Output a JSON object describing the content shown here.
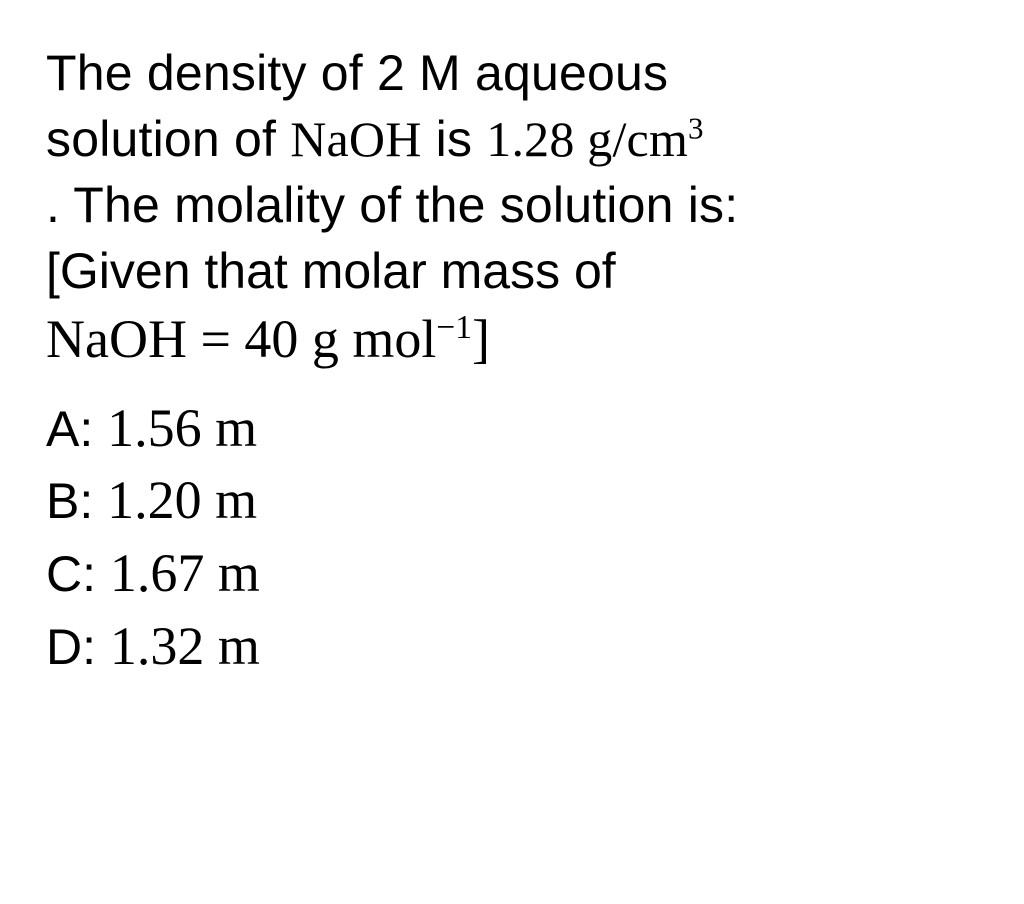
{
  "background_color": "#ffffff",
  "text_color": "#000000",
  "fonts": {
    "sans": "Arial, Helvetica, sans-serif",
    "serif": "\"Times New Roman\", Times, serif"
  },
  "question": {
    "line1_a": "The density of 2 M aqueous",
    "line2_a": "solution of ",
    "line2_b": "NaOH",
    "line2_c": " is ",
    "line2_d": "1.28 g/cm",
    "line2_exp": "3",
    "line3": ". The molality of the solution is:",
    "given_open": "[Given that molar mass of",
    "formula_a": "NaOH = 40 g mol",
    "formula_exp": "−1",
    "formula_close": "]",
    "font_size_pt": 38,
    "line_height": 1.32
  },
  "options": {
    "font_size_pt": 38,
    "letter_font": "sans",
    "value_font": "serif",
    "items": [
      {
        "letter": "A:",
        "value": "1.56 m"
      },
      {
        "letter": "B:",
        "value": "1.20 m"
      },
      {
        "letter": "C:",
        "value": "1.67 m"
      },
      {
        "letter": "D:",
        "value": "1.32 m"
      }
    ]
  }
}
